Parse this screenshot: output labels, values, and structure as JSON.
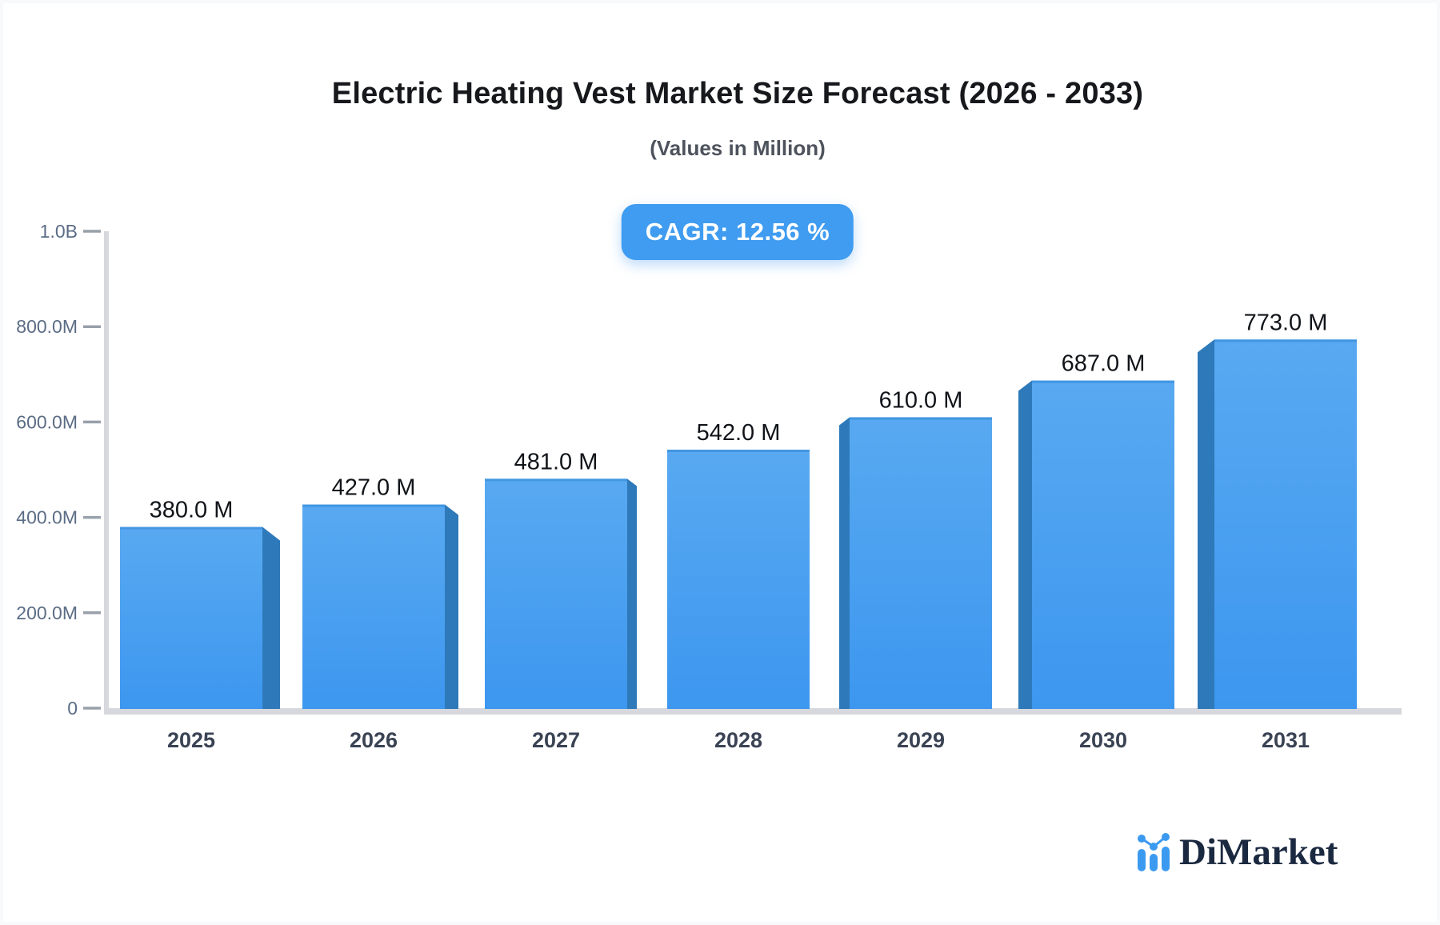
{
  "header": {
    "title": "Electric Heating Vest Market Size Forecast (2026 - 2033)",
    "subtitle": "(Values in Million)",
    "cagr_label": "CAGR: 12.56 %",
    "cagr_value": "12.56"
  },
  "chart_data": {
    "type": "bar",
    "title": "Electric Heating Vest Market Size Forecast (2026 - 2033)",
    "subtitle": "(Values in Million)",
    "unit": "Million",
    "categories": [
      "2025",
      "2026",
      "2027",
      "2028",
      "2029",
      "2030",
      "2031"
    ],
    "values": [
      380,
      427,
      481,
      542,
      610,
      687,
      773
    ],
    "value_labels": [
      "380.0 M",
      "427.0 M",
      "481.0 M",
      "542.0 M",
      "610.0 M",
      "687.0 M",
      "773.0 M"
    ],
    "y_axis": {
      "range": [
        0,
        1000
      ],
      "ticks": [
        {
          "value": 0,
          "label": "0"
        },
        {
          "value": 200,
          "label": "200.0M"
        },
        {
          "value": 400,
          "label": "400.0M"
        },
        {
          "value": 600,
          "label": "600.0M"
        },
        {
          "value": 800,
          "label": "800.0M"
        },
        {
          "value": 1000,
          "label": "1.0B"
        }
      ]
    },
    "grid": false,
    "legend": null,
    "style": "3d-bars-center-perspective"
  },
  "branding": {
    "logo_text": "DiMarket",
    "logo_icon": "bar-line-chart-icon"
  },
  "colors": {
    "bar_face_top": "#58a9f1",
    "bar_face_bottom": "#3d97ef",
    "bar_top_edge": "#2c84d4",
    "bar_side": "#2e79b9",
    "axis_line": "#d6d8dd",
    "tick_dash": "#98a0aa",
    "y_label": "#5b6c85",
    "x_label": "#3a4354",
    "value_label": "#101419",
    "badge_bg": "#3f9cf0",
    "badge_text": "#ffffff",
    "logo_blue": "#3b9af0",
    "logo_navy": "#1b2940"
  }
}
